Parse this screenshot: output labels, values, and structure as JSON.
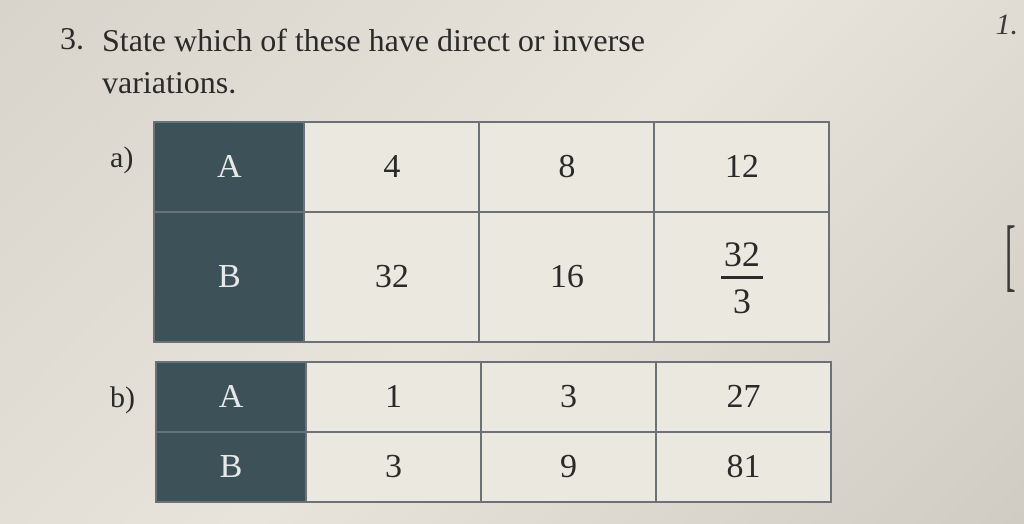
{
  "question": {
    "number": "3.",
    "text_line1": "State which of these have direct or inverse",
    "text_line2": "variations."
  },
  "part_a": {
    "label": "a)",
    "headers": {
      "row1": "A",
      "row2": "B"
    },
    "row1": [
      "4",
      "8",
      "12"
    ],
    "row2": [
      "32",
      "16"
    ],
    "row2_fraction": {
      "num": "32",
      "den": "3"
    }
  },
  "part_b": {
    "label": "b)",
    "headers": {
      "row1": "A",
      "row2": "B"
    },
    "row1": [
      "1",
      "3",
      "27"
    ],
    "row2": [
      "3",
      "9",
      "81"
    ]
  },
  "edge": {
    "mark": "1.",
    "bracket": "["
  },
  "styling": {
    "page_bg": "#ddd9d1",
    "header_bg": "#3d5258",
    "header_fg": "#e8e8e8",
    "cell_bg": "#ebe8e0",
    "cell_fg": "#2a2a2a",
    "border_color": "#6a7278",
    "question_fontsize": 32,
    "cell_fontsize": 34,
    "fraction_fontsize": 36,
    "header_col_width": 150,
    "data_col_width": 175
  }
}
